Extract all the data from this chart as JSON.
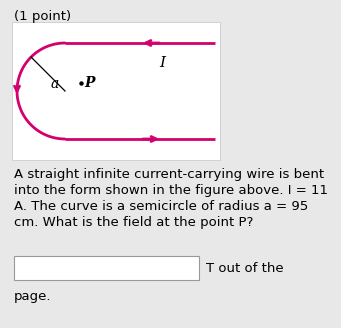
{
  "bg_color": "#e8e8e8",
  "box_color": "#ffffff",
  "wire_color": "#d4006e",
  "text_color": "#000000",
  "title_text": "(1 point)",
  "body_text_lines": [
    "A straight infinite current-carrying wire is bent",
    "into the form shown in the figure above. I = 11",
    "A. The curve is a semicircle of radius a = 95",
    "cm. What is the field at the point P?"
  ],
  "answer_label": "T out of the",
  "page_label": "page.",
  "current_label": "I",
  "point_label": "P",
  "radius_label": "a",
  "title_fontsize": 9.5,
  "body_fontsize": 9.5,
  "wire_linewidth": 2.0
}
